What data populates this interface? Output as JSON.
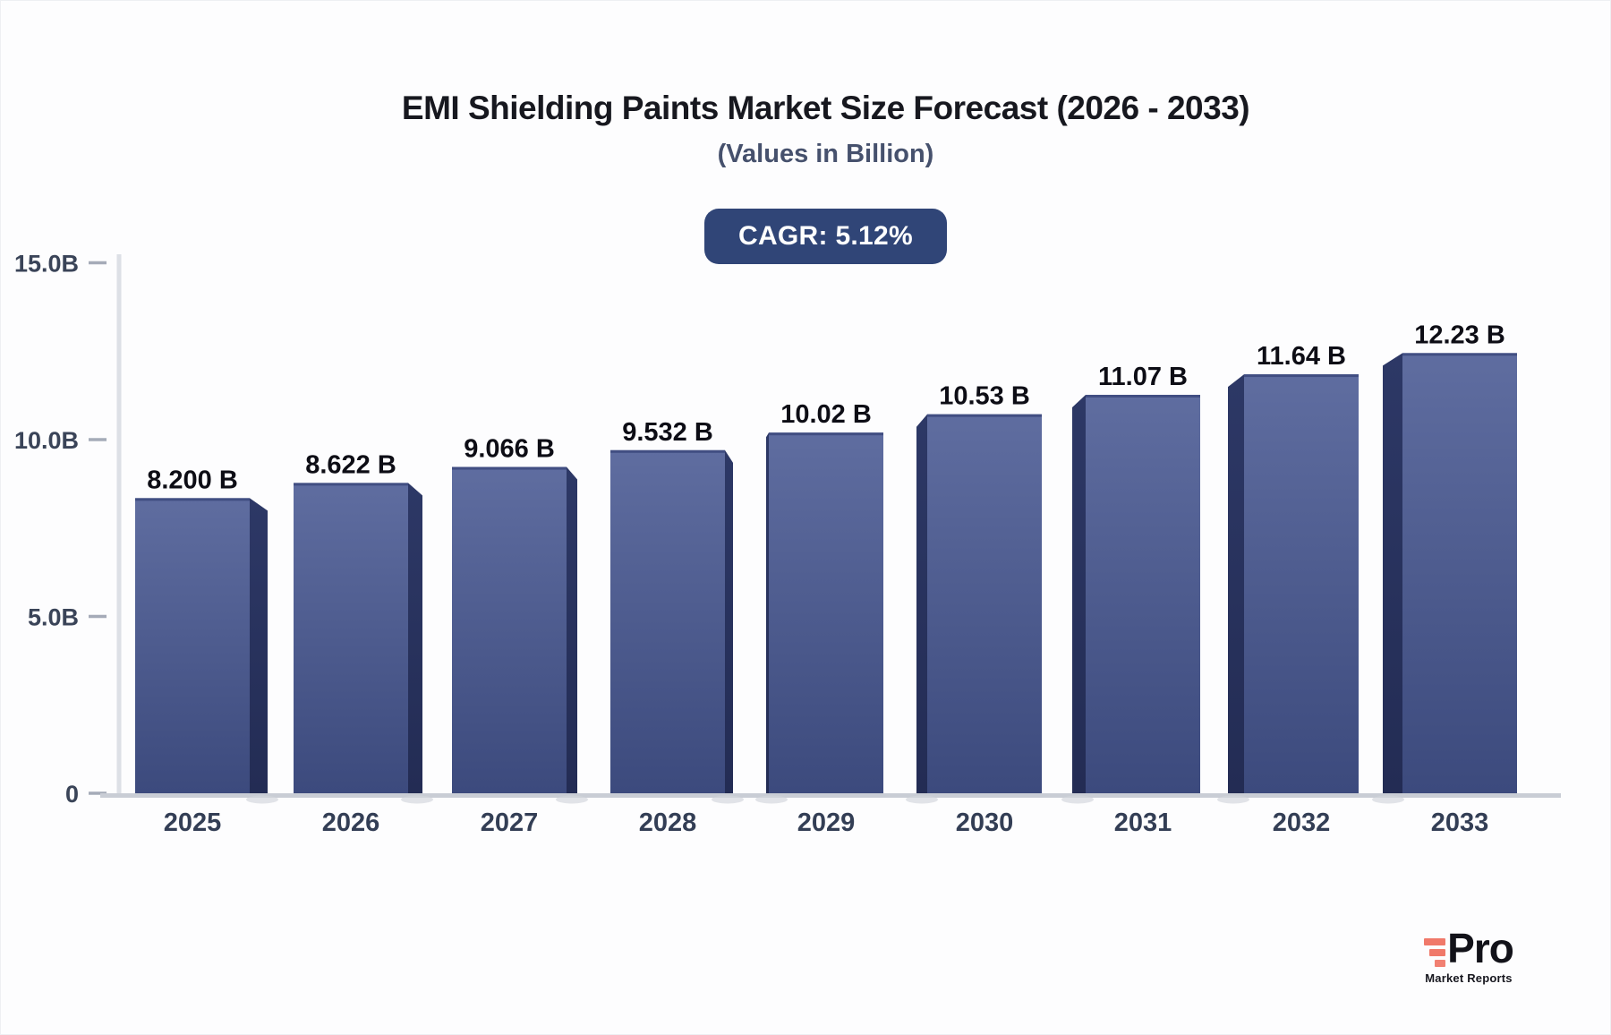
{
  "header": {
    "title": "EMI Shielding Paints Market Size Forecast (2026 - 2033)",
    "subtitle": "(Values in Billion)",
    "cagr_label": "CAGR: 5.12%"
  },
  "chart_data": {
    "type": "bar",
    "title": "EMI Shielding Paints Market Size Forecast (2026 - 2033)",
    "subtitle": "(Values in Billion)",
    "cagr_pct": 5.12,
    "categories": [
      "2025",
      "2026",
      "2027",
      "2028",
      "2029",
      "2030",
      "2031",
      "2032",
      "2033"
    ],
    "values": [
      8.2,
      8.622,
      9.066,
      9.532,
      10.02,
      10.53,
      11.07,
      11.64,
      12.23
    ],
    "value_labels": [
      "8.200 B",
      "8.622 B",
      "9.066 B",
      "9.532 B",
      "10.02 B",
      "10.53 B",
      "11.07 B",
      "11.64 B",
      "12.23 B"
    ],
    "unit": "Billion",
    "ylim": [
      0,
      15
    ],
    "y_ticks": [
      0,
      5,
      10,
      15
    ],
    "y_tick_labels": [
      "0",
      "5.0B",
      "10.0B",
      "15.0B"
    ],
    "grid": false,
    "legend": "none",
    "colors": {
      "bar_face_top": "#5f6da0",
      "bar_face_bottom": "#3c4a7d",
      "bar_side_top": "#2d3866",
      "bar_side_bottom": "#232c54",
      "bar_top_edge": "#414e82",
      "baseline": "#c9cdd5",
      "axis_line": "#dde0e6",
      "tick_dash": "#a5abb8",
      "y_label": "#3a4458",
      "x_label": "#333e55",
      "value_label": "#0d0d15",
      "shadow": "#d2d5dc",
      "badge_bg": "#304577",
      "badge_text": "#ffffff"
    }
  },
  "logo": {
    "name": "Pro",
    "tagline": "Market Reports",
    "accent": "#f0796a"
  }
}
